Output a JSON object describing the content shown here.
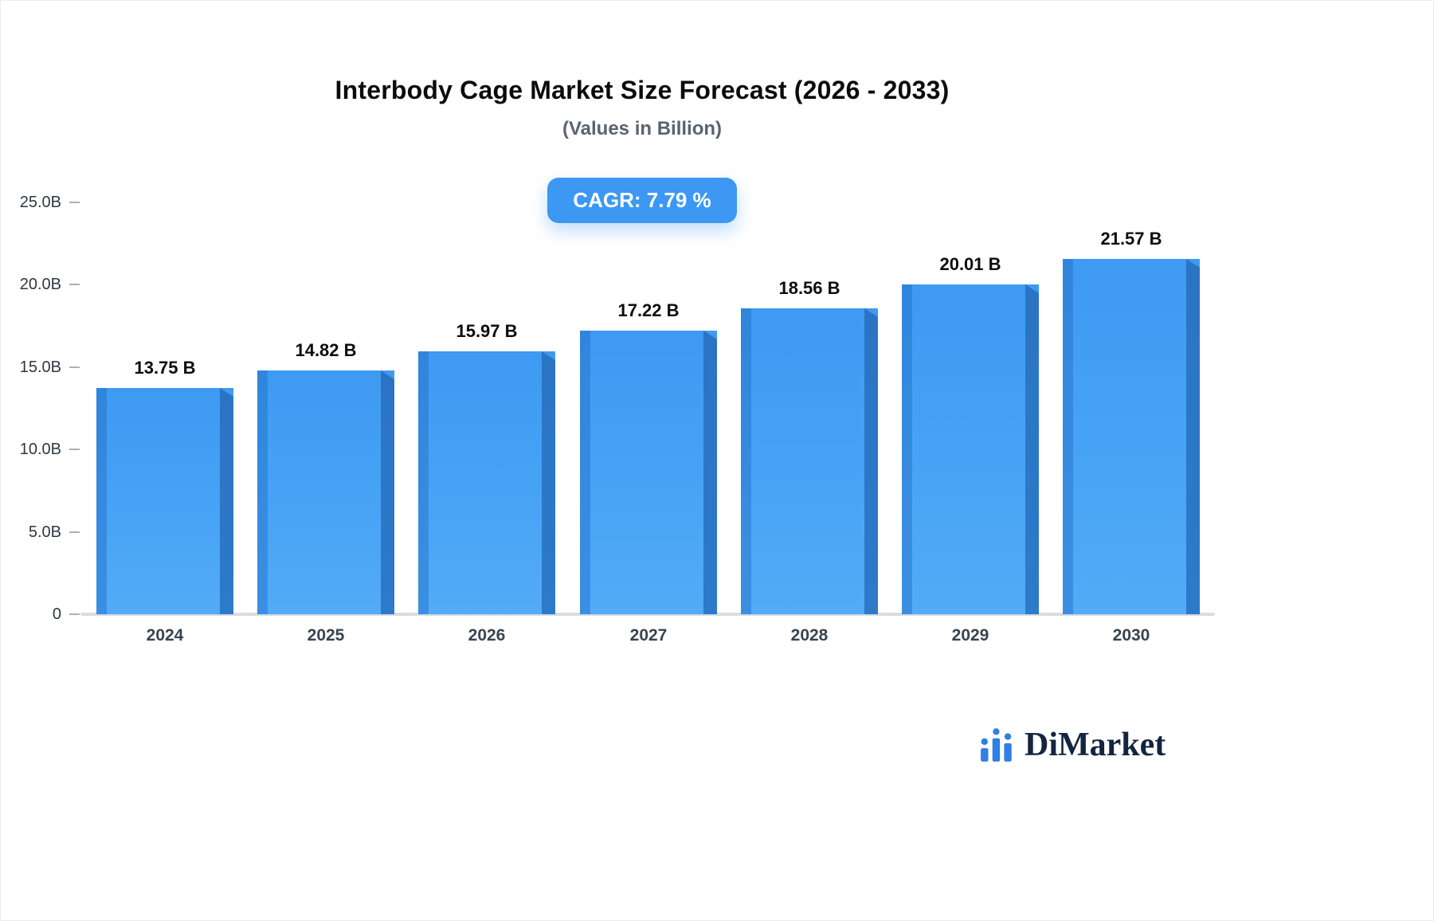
{
  "header": {
    "title": "Interbody Cage Market Size Forecast (2026 - 2033)",
    "subtitle": "(Values in Billion)",
    "cagr_label": "CAGR: 7.79 %"
  },
  "brand": {
    "name": "DiMarket"
  },
  "chart_data": {
    "type": "bar",
    "title": "Interbody Cage Market Size Forecast (2026 - 2033)",
    "subtitle": "(Values in Billion)",
    "cagr": "7.79 %",
    "categories": [
      "2024",
      "2025",
      "2026",
      "2027",
      "2028",
      "2029",
      "2030"
    ],
    "values": [
      13.75,
      14.82,
      15.97,
      17.22,
      18.56,
      20.01,
      21.57
    ],
    "value_labels": [
      "13.75 B",
      "14.82 B",
      "15.97 B",
      "17.22 B",
      "18.56 B",
      "20.01 B",
      "21.57 B"
    ],
    "xlabel": "",
    "ylabel": "",
    "ylim": [
      0,
      25
    ],
    "y_ticks": [
      {
        "label": "25.0B",
        "value": 25
      },
      {
        "label": "20.0B",
        "value": 20
      },
      {
        "label": "15.0B",
        "value": 15
      },
      {
        "label": "10.0B",
        "value": 10
      },
      {
        "label": "5.0B",
        "value": 5
      },
      {
        "label": "0",
        "value": 0
      }
    ],
    "grid": false,
    "legend": null,
    "bar_face_color": "#47a3f5",
    "bar_left_edge_color": "#2f86dc",
    "bar_right_edge_color": "#2b74c4",
    "axis_line_color": "#d9dce1"
  }
}
